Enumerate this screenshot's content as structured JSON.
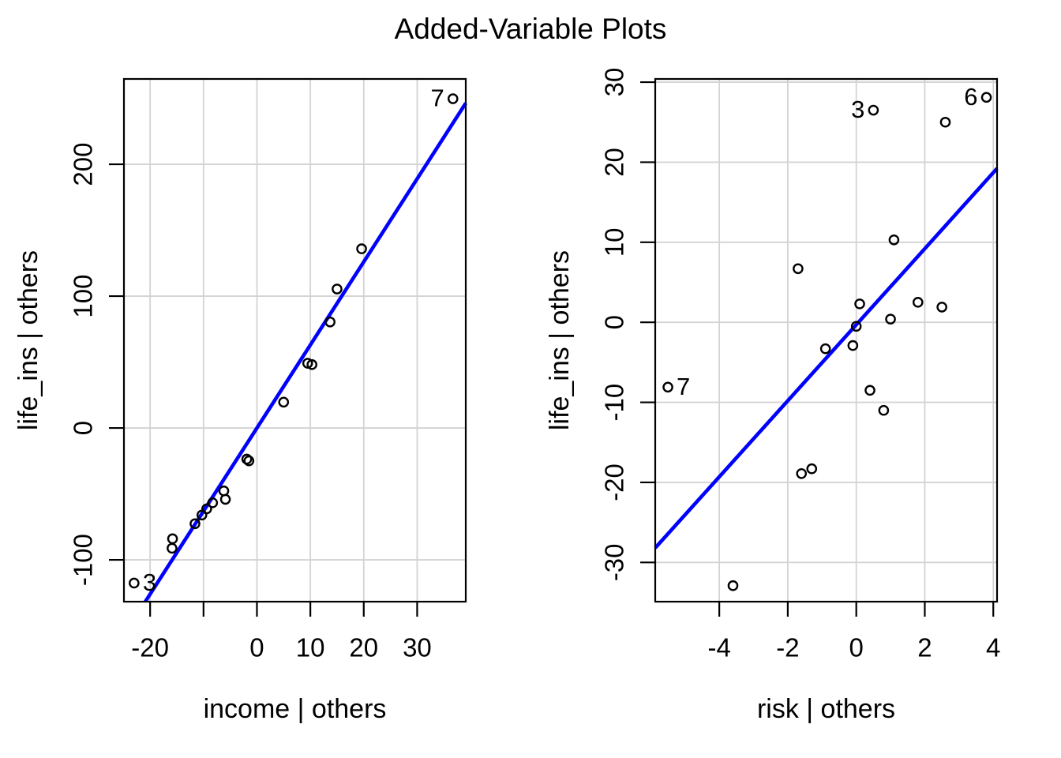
{
  "title": "Added-Variable Plots",
  "colors": {
    "regression_line": "#0000ff",
    "grid": "#d3d3d3",
    "foreground": "#000000",
    "background": "#ffffff"
  },
  "chart_data": [
    {
      "type": "scatter",
      "name": "income-av-plot",
      "xlabel": "income | others",
      "ylabel": "life_ins | others",
      "xlim": [
        -24.9,
        39.1
      ],
      "ylim": [
        -131.7,
        264.7
      ],
      "grid": true,
      "xticks": [
        {
          "v": -20,
          "label": "-20"
        },
        {
          "v": -10,
          "label": ""
        },
        {
          "v": 0,
          "label": "0"
        },
        {
          "v": 10,
          "label": "10"
        },
        {
          "v": 20,
          "label": "20"
        },
        {
          "v": 30,
          "label": "30"
        }
      ],
      "yticks": [
        {
          "v": -100,
          "label": "-100"
        },
        {
          "v": 0,
          "label": "0"
        },
        {
          "v": 100,
          "label": "100"
        },
        {
          "v": 200,
          "label": "200"
        }
      ],
      "line": {
        "slope": 6.3,
        "intercept": 0
      },
      "points": [
        {
          "x": 36.7,
          "y": 249.7,
          "id": "7",
          "id_pos": "left"
        },
        {
          "x": 19.6,
          "y": 135.9
        },
        {
          "x": 15.0,
          "y": 105.4
        },
        {
          "x": 13.7,
          "y": 80.4
        },
        {
          "x": 9.5,
          "y": 49.1
        },
        {
          "x": 10.3,
          "y": 48.1
        },
        {
          "x": 5.0,
          "y": 19.6
        },
        {
          "x": -1.9,
          "y": -23.6
        },
        {
          "x": -1.5,
          "y": -24.9
        },
        {
          "x": -6.2,
          "y": -47.7
        },
        {
          "x": -5.9,
          "y": -54.1
        },
        {
          "x": -8.3,
          "y": -56.7
        },
        {
          "x": -9.4,
          "y": -61.3
        },
        {
          "x": -10.3,
          "y": -66.0
        },
        {
          "x": -11.6,
          "y": -72.6
        },
        {
          "x": -15.8,
          "y": -84.0
        },
        {
          "x": -15.9,
          "y": -91.2
        },
        {
          "x": -23.0,
          "y": -117.6,
          "id": "3",
          "id_pos": "right"
        }
      ]
    },
    {
      "type": "scatter",
      "name": "risk-av-plot",
      "xlabel": "risk | others",
      "ylabel": "life_ins | others",
      "xlim": [
        -5.87,
        4.11
      ],
      "ylim": [
        -34.9,
        30.4
      ],
      "grid": true,
      "xticks": [
        {
          "v": -4,
          "label": "-4"
        },
        {
          "v": -2,
          "label": "-2"
        },
        {
          "v": 0,
          "label": "0"
        },
        {
          "v": 2,
          "label": "2"
        },
        {
          "v": 4,
          "label": "4"
        }
      ],
      "yticks": [
        {
          "v": -30,
          "label": "-30"
        },
        {
          "v": -20,
          "label": "-20"
        },
        {
          "v": -10,
          "label": "-10"
        },
        {
          "v": 0,
          "label": "0"
        },
        {
          "v": 10,
          "label": "10"
        },
        {
          "v": 20,
          "label": "20"
        },
        {
          "v": 30,
          "label": "30"
        }
      ],
      "line": {
        "slope": 4.75,
        "intercept": -0.3
      },
      "points": [
        {
          "x": 3.8,
          "y": 28.1,
          "id": "6",
          "id_pos": "left"
        },
        {
          "x": 2.6,
          "y": 25.0
        },
        {
          "x": 0.5,
          "y": 26.5,
          "id": "3",
          "id_pos": "left"
        },
        {
          "x": 1.1,
          "y": 10.3
        },
        {
          "x": -1.7,
          "y": 6.7
        },
        {
          "x": 0.1,
          "y": 2.3
        },
        {
          "x": 1.8,
          "y": 2.5
        },
        {
          "x": 2.5,
          "y": 1.9
        },
        {
          "x": 1.0,
          "y": 0.4
        },
        {
          "x": 0.0,
          "y": -0.5
        },
        {
          "x": -0.1,
          "y": -2.9
        },
        {
          "x": -0.9,
          "y": -3.3
        },
        {
          "x": 0.4,
          "y": -8.5
        },
        {
          "x": 0.8,
          "y": -11.0
        },
        {
          "x": -5.5,
          "y": -8.1,
          "id": "7",
          "id_pos": "right"
        },
        {
          "x": -1.6,
          "y": -18.9
        },
        {
          "x": -1.3,
          "y": -18.3
        },
        {
          "x": -3.6,
          "y": -32.9
        }
      ]
    }
  ]
}
